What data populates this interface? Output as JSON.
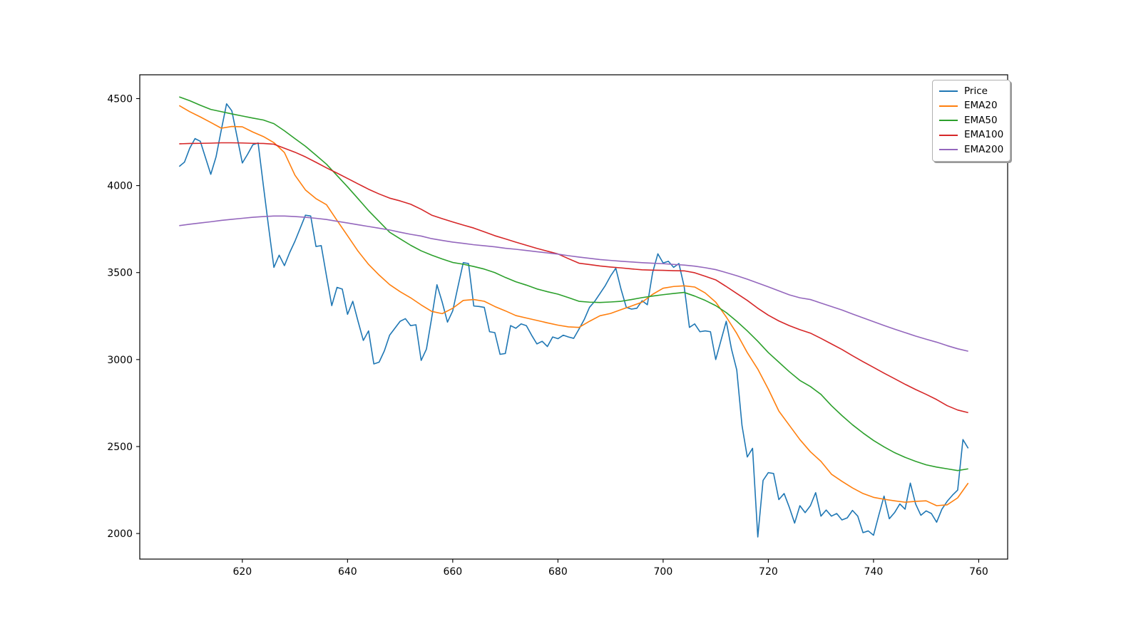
{
  "figure": {
    "background_color": "#ffffff",
    "spine_color": "#000000"
  },
  "legend": {
    "entries": [
      {
        "label": "Price",
        "color": "#1f77b4"
      },
      {
        "label": "EMA20",
        "color": "#ff7f0e"
      },
      {
        "label": "EMA50",
        "color": "#2ca02c"
      },
      {
        "label": "EMA100",
        "color": "#d62728"
      },
      {
        "label": "EMA200",
        "color": "#9467bd"
      }
    ],
    "position": "upper right"
  },
  "chart_data": {
    "type": "line",
    "title": "",
    "xlabel": "",
    "ylabel": "",
    "grid": false,
    "legend_position": "upper right",
    "xlim": [
      600.5,
      765.5
    ],
    "ylim": [
      1853,
      4637
    ],
    "xticks": [
      620,
      640,
      660,
      680,
      700,
      720,
      740,
      760
    ],
    "yticks": [
      2000,
      2500,
      3000,
      3500,
      4000,
      4500
    ],
    "series": [
      {
        "name": "Price",
        "color": "#1f77b4",
        "x_start": 608,
        "x_step": 1,
        "values": [
          4110,
          4135,
          4215,
          4270,
          4255,
          4160,
          4065,
          4165,
          4320,
          4470,
          4430,
          4280,
          4130,
          4180,
          4235,
          4245,
          4000,
          3760,
          3530,
          3600,
          3540,
          3615,
          3680,
          3755,
          3830,
          3825,
          3650,
          3655,
          3480,
          3310,
          3415,
          3405,
          3260,
          3335,
          3220,
          3110,
          3165,
          2975,
          2985,
          3050,
          3140,
          3180,
          3220,
          3235,
          3195,
          3200,
          2995,
          3060,
          3240,
          3430,
          3330,
          3215,
          3280,
          3420,
          3557,
          3552,
          3308,
          3305,
          3300,
          3160,
          3155,
          3030,
          3035,
          3195,
          3180,
          3205,
          3195,
          3140,
          3090,
          3105,
          3075,
          3130,
          3120,
          3140,
          3130,
          3122,
          3175,
          3230,
          3300,
          3335,
          3380,
          3425,
          3480,
          3525,
          3404,
          3300,
          3290,
          3295,
          3338,
          3315,
          3500,
          3608,
          3555,
          3565,
          3530,
          3552,
          3420,
          3185,
          3205,
          3160,
          3165,
          3160,
          3000,
          3110,
          3220,
          3060,
          2940,
          2620,
          2440,
          2490,
          1980,
          2305,
          2350,
          2345,
          2195,
          2230,
          2150,
          2060,
          2160,
          2120,
          2160,
          2235,
          2100,
          2135,
          2100,
          2115,
          2078,
          2090,
          2133,
          2100,
          2005,
          2015,
          1990,
          2105,
          2215,
          2085,
          2120,
          2170,
          2140,
          2290,
          2170,
          2105,
          2130,
          2115,
          2065,
          2140,
          2185,
          2220,
          2250,
          2540,
          2490
        ]
      },
      {
        "name": "EMA20",
        "color": "#ff7f0e",
        "x_start": 608,
        "x_step": 2,
        "values": [
          4460,
          4425,
          4395,
          4363,
          4330,
          4340,
          4338,
          4308,
          4282,
          4247,
          4190,
          4060,
          3975,
          3925,
          3890,
          3800,
          3712,
          3623,
          3547,
          3486,
          3431,
          3390,
          3355,
          3314,
          3277,
          3264,
          3295,
          3340,
          3345,
          3335,
          3305,
          3280,
          3253,
          3239,
          3225,
          3211,
          3198,
          3188,
          3185,
          3220,
          3252,
          3265,
          3287,
          3308,
          3330,
          3375,
          3410,
          3420,
          3424,
          3417,
          3383,
          3330,
          3245,
          3150,
          3040,
          2945,
          2830,
          2704,
          2622,
          2540,
          2470,
          2415,
          2341,
          2300,
          2262,
          2230,
          2208,
          2197,
          2188,
          2180,
          2185,
          2188,
          2160,
          2165,
          2205,
          2290
        ]
      },
      {
        "name": "EMA50",
        "color": "#2ca02c",
        "x_start": 608,
        "x_step": 2,
        "values": [
          4510,
          4488,
          4462,
          4438,
          4425,
          4412,
          4400,
          4388,
          4377,
          4356,
          4315,
          4270,
          4226,
          4175,
          4123,
          4058,
          3993,
          3925,
          3856,
          3794,
          3732,
          3694,
          3657,
          3625,
          3600,
          3578,
          3558,
          3548,
          3535,
          3520,
          3500,
          3472,
          3447,
          3428,
          3406,
          3390,
          3376,
          3356,
          3335,
          3330,
          3328,
          3331,
          3335,
          3345,
          3356,
          3365,
          3373,
          3380,
          3386,
          3365,
          3340,
          3310,
          3270,
          3220,
          3165,
          3105,
          3040,
          2985,
          2930,
          2880,
          2845,
          2800,
          2735,
          2678,
          2625,
          2578,
          2535,
          2498,
          2465,
          2438,
          2415,
          2395,
          2382,
          2372,
          2362,
          2372
        ]
      },
      {
        "name": "EMA100",
        "color": "#d62728",
        "x_start": 608,
        "x_step": 2,
        "values": [
          4240,
          4242,
          4243,
          4244,
          4246,
          4246,
          4245,
          4243,
          4242,
          4238,
          4215,
          4192,
          4165,
          4134,
          4102,
          4072,
          4041,
          4010,
          3979,
          3952,
          3928,
          3912,
          3893,
          3864,
          3830,
          3810,
          3791,
          3773,
          3756,
          3734,
          3712,
          3694,
          3675,
          3657,
          3639,
          3623,
          3607,
          3580,
          3554,
          3546,
          3538,
          3532,
          3527,
          3521,
          3516,
          3514,
          3513,
          3511,
          3510,
          3499,
          3479,
          3458,
          3420,
          3380,
          3340,
          3295,
          3255,
          3222,
          3195,
          3172,
          3152,
          3122,
          3090,
          3058,
          3022,
          2988,
          2955,
          2922,
          2890,
          2858,
          2828,
          2800,
          2770,
          2735,
          2710,
          2695
        ]
      },
      {
        "name": "EMA200",
        "color": "#9467bd",
        "x_start": 608,
        "x_step": 2,
        "values": [
          3770,
          3778,
          3785,
          3792,
          3800,
          3806,
          3812,
          3818,
          3822,
          3825,
          3825,
          3822,
          3818,
          3812,
          3805,
          3795,
          3785,
          3775,
          3765,
          3755,
          3745,
          3732,
          3720,
          3710,
          3695,
          3685,
          3675,
          3668,
          3660,
          3654,
          3648,
          3640,
          3634,
          3627,
          3620,
          3613,
          3606,
          3597,
          3589,
          3582,
          3575,
          3570,
          3565,
          3561,
          3557,
          3554,
          3551,
          3547,
          3543,
          3537,
          3528,
          3517,
          3500,
          3482,
          3462,
          3440,
          3418,
          3395,
          3372,
          3355,
          3345,
          3325,
          3305,
          3285,
          3262,
          3240,
          3218,
          3196,
          3175,
          3155,
          3135,
          3117,
          3100,
          3080,
          3062,
          3048
        ]
      }
    ]
  }
}
